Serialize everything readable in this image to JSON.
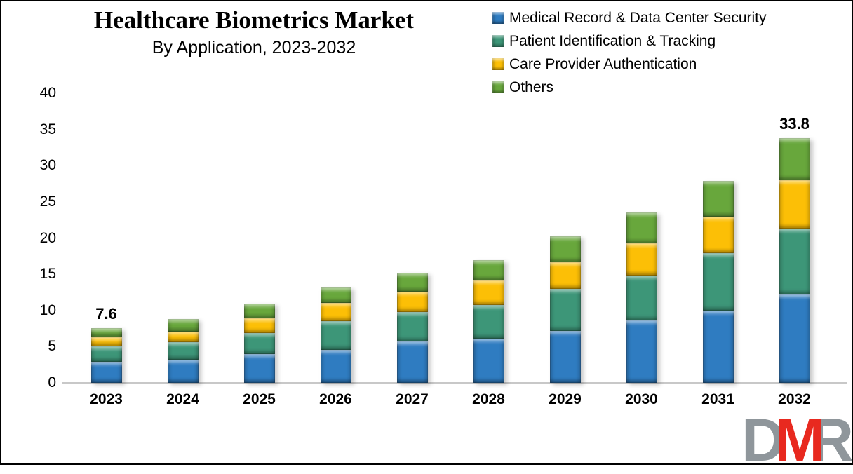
{
  "header": {
    "title": "Healthcare Biometrics Market",
    "subtitle": "By Application, 2023-2032"
  },
  "colors": {
    "blue": "#2f7cc1",
    "teal": "#3d9678",
    "yellow": "#fcbf06",
    "green": "#68a73c",
    "axis_line": "#c8c8c8",
    "logo_gray": "#8f969b",
    "logo_red": "#e8291f"
  },
  "chart_data": {
    "type": "bar",
    "stacked": true,
    "title": "Healthcare Biometrics Market",
    "subtitle": "By Application, 2023-2032",
    "categories": [
      "2023",
      "2024",
      "2025",
      "2026",
      "2027",
      "2028",
      "2029",
      "2030",
      "2031",
      "2032"
    ],
    "series": [
      {
        "name": "Medical Record & Data Center Security",
        "slug": "medical-record-data-center-security",
        "color": "#2f7cc1",
        "values": [
          2.9,
          3.2,
          4.0,
          4.6,
          5.7,
          6.1,
          7.2,
          8.6,
          10.0,
          12.2
        ]
      },
      {
        "name": "Patient Identification & Tracking",
        "slug": "patient-identification-tracking",
        "color": "#3d9678",
        "values": [
          2.1,
          2.4,
          2.9,
          3.9,
          4.1,
          4.7,
          5.8,
          6.2,
          7.9,
          9.1
        ]
      },
      {
        "name": "Care Provider Authentication",
        "slug": "care-provider-authentication",
        "color": "#fcbf06",
        "values": [
          1.3,
          1.5,
          2.0,
          2.5,
          2.8,
          3.3,
          3.7,
          4.5,
          5.1,
          6.7
        ]
      },
      {
        "name": "Others",
        "slug": "others",
        "color": "#68a73c",
        "values": [
          1.3,
          1.7,
          2.0,
          2.2,
          2.6,
          2.9,
          3.5,
          4.2,
          4.9,
          5.8
        ]
      }
    ],
    "totals": [
      7.6,
      8.8,
      10.9,
      13.2,
      15.2,
      17.0,
      20.2,
      23.5,
      27.9,
      33.8
    ],
    "data_labels": {
      "2023": "7.6",
      "2032": "33.8"
    },
    "xlabel": "",
    "ylabel": "",
    "ylim": [
      0,
      40
    ],
    "ytick_step": 5,
    "yticks": [
      0,
      5,
      10,
      15,
      20,
      25,
      30,
      35,
      40
    ],
    "grid": false,
    "legend_position": "top-right"
  },
  "logo": {
    "letters": [
      {
        "char": "D",
        "color": "#8f969b"
      },
      {
        "char": "M",
        "color": "#e8291f"
      },
      {
        "char": "R",
        "color": "#8f969b"
      }
    ]
  }
}
